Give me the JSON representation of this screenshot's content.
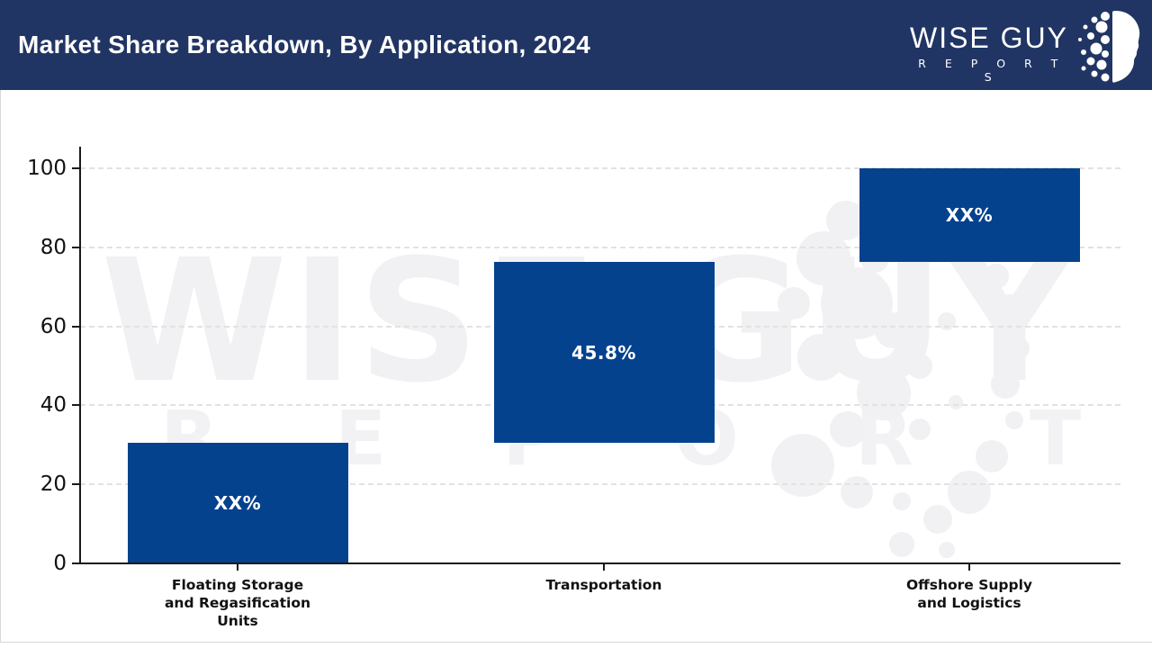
{
  "header": {
    "title": "Market Share Breakdown, By Application, 2024",
    "bg_color": "#213564",
    "logo": {
      "wordmark": "WISE GUY",
      "subtext": "R E P O R T S"
    }
  },
  "watermark": {
    "wordmark": "WISE GUY",
    "subtext": "R E P O R T S"
  },
  "chart_data": {
    "type": "bar",
    "subtype": "floating-stacked-segments",
    "title": "Market Share Breakdown, By Application, 2024",
    "categories": [
      "Floating Storage and Regasification Units",
      "Transportation",
      "Offshore Supply and Logistics"
    ],
    "category_lines": [
      [
        "Floating Storage",
        "and Regasification",
        "Units"
      ],
      [
        "Transportation"
      ],
      [
        "Offshore Supply",
        "and Logistics"
      ]
    ],
    "segments": [
      {
        "category": "Floating Storage and Regasification Units",
        "start": 0,
        "end": 30.5,
        "value_label": "XX%"
      },
      {
        "category": "Transportation",
        "start": 30.5,
        "end": 76.3,
        "value_label": "45.8%"
      },
      {
        "category": "Offshore Supply and Logistics",
        "start": 76.3,
        "end": 100,
        "value_label": "XX%"
      }
    ],
    "ylim": [
      0,
      100
    ],
    "yticks": [
      0,
      20,
      40,
      60,
      80,
      100
    ],
    "grid": "horizontal-dashed",
    "legend": "none",
    "bar_color": "#04428e",
    "value_label_color": "#ffffff",
    "grid_color": "#e2e2e2",
    "axis_color": "#1a1a1a"
  }
}
